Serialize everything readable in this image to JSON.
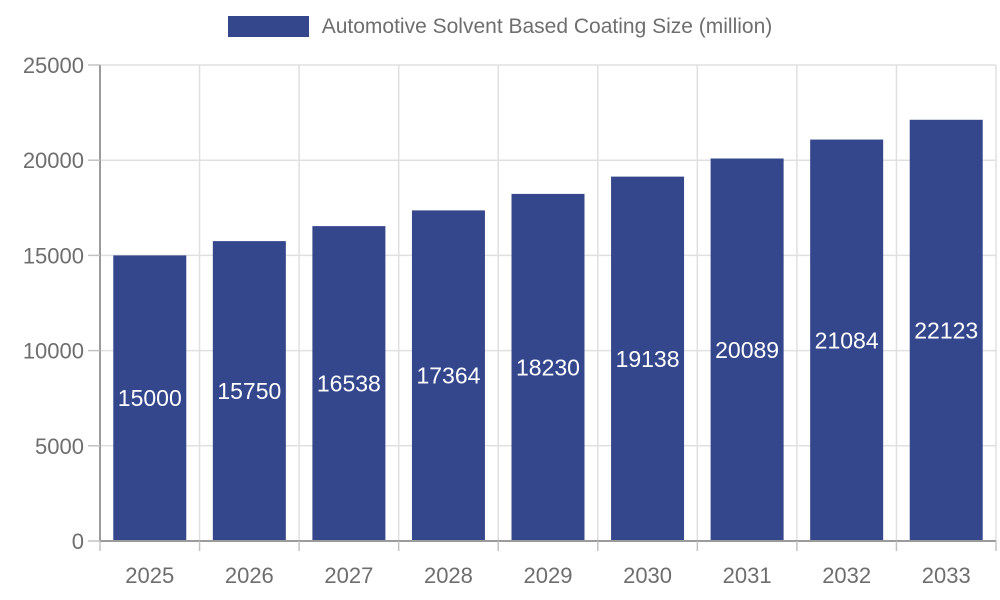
{
  "chart_data": {
    "type": "bar",
    "title": "Automotive Solvent Based Coating Size (million)",
    "legend_label": "Automotive Solvent Based Coating Size (million)",
    "categories": [
      "2025",
      "2026",
      "2027",
      "2028",
      "2029",
      "2030",
      "2031",
      "2032",
      "2033"
    ],
    "values": [
      15000,
      15750,
      16538,
      17364,
      18230,
      19138,
      20089,
      21084,
      22123
    ],
    "xlabel": "",
    "ylabel": "",
    "ylim": [
      0,
      25000
    ],
    "yticks": [
      0,
      5000,
      10000,
      15000,
      20000,
      25000
    ],
    "grid": "on",
    "legend_position": "top-center",
    "colors": {
      "bar": "#35478C",
      "grid": "#e0e0e0",
      "axis": "#9b9b9b",
      "tick": "#c2c2c2",
      "text": "#6e6e6e",
      "value_label": "#ffffff"
    }
  }
}
